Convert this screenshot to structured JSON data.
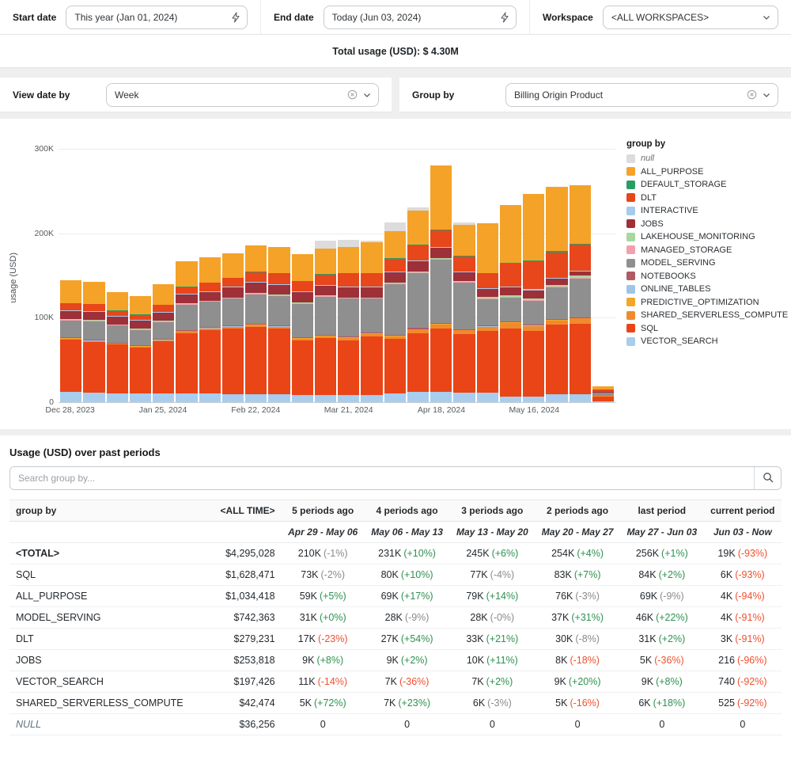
{
  "filters": {
    "start_date": {
      "label": "Start date",
      "value": "This year (Jan 01, 2024)"
    },
    "end_date": {
      "label": "End date",
      "value": "Today (Jun 03, 2024)"
    },
    "workspace": {
      "label": "Workspace",
      "value": "<ALL WORKSPACES>"
    },
    "view_date_by": {
      "label": "View date by",
      "value": "Week"
    },
    "group_by": {
      "label": "Group by",
      "value": "Billing Origin Product"
    }
  },
  "summary": {
    "total_usage": "Total usage (USD): $ 4.30M"
  },
  "chart_data": {
    "type": "bar",
    "stacked": true,
    "ylabel": "usage (USD)",
    "units": "thousands USD per week",
    "ylim_k": [
      0,
      300
    ],
    "yticks_k": [
      {
        "v": 0,
        "label": "0"
      },
      {
        "v": 100,
        "label": "100K"
      },
      {
        "v": 200,
        "label": "200K"
      },
      {
        "v": 300,
        "label": "300K"
      }
    ],
    "x_axis_labels": [
      {
        "index": 0,
        "label": "Dec 28, 2023"
      },
      {
        "index": 4,
        "label": "Jan 25, 2024"
      },
      {
        "index": 8,
        "label": "Feb 22, 2024"
      },
      {
        "index": 12,
        "label": "Mar 21, 2024"
      },
      {
        "index": 16,
        "label": "Apr 18, 2024"
      },
      {
        "index": 20,
        "label": "May 16, 2024"
      }
    ],
    "legend_title": "group by",
    "legend_position": "right",
    "series": [
      {
        "name": "null",
        "color": "#DCDCDC",
        "values": [
          0,
          0,
          0,
          0,
          0,
          0,
          0,
          0,
          0,
          0,
          0,
          10,
          9,
          2,
          10,
          4,
          0,
          3,
          0,
          0,
          0,
          0,
          0,
          0
        ]
      },
      {
        "name": "ALL_PURPOSE",
        "color": "#F5A229",
        "values": [
          27,
          26,
          22,
          22,
          24,
          30,
          30,
          29,
          31,
          31,
          32,
          30,
          31,
          37,
          32,
          40,
          76,
          36,
          59,
          69,
          79,
          76,
          69,
          4
        ]
      },
      {
        "name": "DEFAULT_STORAGE",
        "color": "#2A9D64",
        "values": [
          0.5,
          0.5,
          0.5,
          0.5,
          0.5,
          0.5,
          0.5,
          0.5,
          0.5,
          0.5,
          0.5,
          0.5,
          0.5,
          0.5,
          1,
          1,
          1,
          1,
          1,
          1,
          1,
          1,
          1,
          0.1
        ]
      },
      {
        "name": "DLT",
        "color": "#E8461B",
        "values": [
          8,
          8,
          6,
          6,
          8,
          8,
          10,
          10,
          12,
          12,
          12,
          12,
          15,
          15,
          15,
          18,
          20,
          18,
          17,
          27,
          33,
          30,
          31,
          3
        ]
      },
      {
        "name": "INTERACTIVE",
        "color": "#A6CBEC",
        "values": [
          1,
          1,
          1,
          1,
          1,
          1,
          1,
          1,
          1,
          1,
          1,
          1,
          1,
          1,
          1,
          1,
          1,
          1,
          1,
          1,
          1,
          1,
          1,
          0.1
        ]
      },
      {
        "name": "JOBS",
        "color": "#9E3039",
        "values": [
          10,
          10,
          9,
          9,
          10,
          10,
          10,
          12,
          12,
          12,
          12,
          12,
          12,
          12,
          12,
          12,
          12,
          10,
          9,
          9,
          10,
          8,
          5,
          0.2
        ]
      },
      {
        "name": "LAKEHOUSE_MONITORING",
        "color": "#A8D8A0",
        "values": [
          0.5,
          0.5,
          0.5,
          0.5,
          0.5,
          0.5,
          0.5,
          0.5,
          0.5,
          0.5,
          0.5,
          0.5,
          0.5,
          0.5,
          1,
          1,
          1,
          1,
          2,
          2,
          2,
          2,
          2,
          0.1
        ]
      },
      {
        "name": "MANAGED_STORAGE",
        "color": "#F2A1AC",
        "values": [
          1,
          1,
          1,
          1,
          1,
          1,
          1,
          1,
          1,
          1,
          1,
          1,
          1,
          1,
          1,
          1,
          1,
          1,
          1,
          1,
          1,
          1,
          1,
          0.1
        ]
      },
      {
        "name": "MODEL_SERVING",
        "color": "#8F8F8F",
        "values": [
          20,
          22,
          20,
          18,
          20,
          30,
          30,
          32,
          35,
          35,
          40,
          45,
          45,
          40,
          60,
          65,
          75,
          55,
          31,
          28,
          28,
          37,
          46,
          4
        ]
      },
      {
        "name": "NOTEBOOKS",
        "color": "#B05A66",
        "values": [
          1,
          1,
          1,
          1,
          1,
          1,
          1,
          1,
          1,
          1,
          1,
          1,
          1,
          1,
          1,
          1,
          1,
          1,
          1,
          1,
          1,
          1,
          1,
          0.1
        ]
      },
      {
        "name": "ONLINE_TABLES",
        "color": "#9FC5E8",
        "values": [
          0.2,
          0.2,
          0.2,
          0.2,
          0.2,
          0.2,
          0.2,
          0.2,
          0.2,
          0.2,
          0.2,
          0.2,
          0.2,
          0.2,
          0.2,
          0.2,
          0.2,
          0.2,
          0.2,
          0.2,
          0.2,
          0.2,
          0.2,
          0.1
        ]
      },
      {
        "name": "PREDICTIVE_OPTIMIZATION",
        "color": "#F4A62A",
        "values": [
          0.5,
          0.5,
          0.5,
          0.5,
          0.5,
          0.5,
          0.5,
          0.5,
          0.5,
          0.5,
          0.5,
          0.5,
          0.5,
          0.5,
          0.5,
          0.5,
          0.5,
          0.5,
          0.5,
          0.5,
          0.5,
          0.5,
          0.5,
          0.1
        ]
      },
      {
        "name": "SHARED_SERVERLESS_COMPUTE",
        "color": "#F08B2D",
        "values": [
          1,
          1,
          1,
          1,
          1,
          2,
          2,
          2,
          2,
          2,
          2,
          2,
          3,
          3,
          3,
          4,
          5,
          4,
          5,
          7,
          6,
          5,
          6,
          0.5
        ]
      },
      {
        "name": "SQL",
        "color": "#EA4517",
        "values": [
          62,
          60,
          58,
          55,
          62,
          72,
          75,
          78,
          80,
          78,
          65,
          68,
          65,
          70,
          65,
          70,
          75,
          70,
          73,
          80,
          77,
          83,
          84,
          6
        ]
      },
      {
        "name": "VECTOR_SEARCH",
        "color": "#A8CDEE",
        "values": [
          12,
          11,
          10,
          10,
          10,
          10,
          10,
          9,
          9,
          9,
          8,
          8,
          8,
          8,
          10,
          12,
          12,
          11,
          11,
          7,
          7,
          9,
          9,
          0.7
        ]
      }
    ]
  },
  "table": {
    "title": "Usage (USD) over past periods",
    "search_placeholder": "Search group by...",
    "trend_colors": {
      "up": "#2E9150",
      "down": "#F0502F",
      "neutral": "#8A8A8A"
    },
    "columns": [
      "group by",
      "<ALL TIME>",
      "5 periods ago",
      "4 periods ago",
      "3 periods ago",
      "2 periods ago",
      "last period",
      "current period"
    ],
    "period_ranges": [
      "",
      "",
      "Apr 29 - May 06",
      "May 06 - May 13",
      "May 13 - May 20",
      "May 20 - May 27",
      "May 27 - Jun 03",
      "Jun 03 - Now"
    ],
    "rows": [
      {
        "name": "<TOTAL>",
        "bold": true,
        "all_time": "$4,295,028",
        "periods": [
          {
            "v": "210K",
            "p": "(-1%)",
            "c": "neutral"
          },
          {
            "v": "231K",
            "p": "(+10%)",
            "c": "up"
          },
          {
            "v": "245K",
            "p": "(+6%)",
            "c": "up"
          },
          {
            "v": "254K",
            "p": "(+4%)",
            "c": "up"
          },
          {
            "v": "256K",
            "p": "(+1%)",
            "c": "up"
          },
          {
            "v": "19K",
            "p": "(-93%)",
            "c": "down"
          }
        ]
      },
      {
        "name": "SQL",
        "all_time": "$1,628,471",
        "periods": [
          {
            "v": "73K",
            "p": "(-2%)",
            "c": "neutral"
          },
          {
            "v": "80K",
            "p": "(+10%)",
            "c": "up"
          },
          {
            "v": "77K",
            "p": "(-4%)",
            "c": "neutral"
          },
          {
            "v": "83K",
            "p": "(+7%)",
            "c": "up"
          },
          {
            "v": "84K",
            "p": "(+2%)",
            "c": "up"
          },
          {
            "v": "6K",
            "p": "(-93%)",
            "c": "down"
          }
        ]
      },
      {
        "name": "ALL_PURPOSE",
        "all_time": "$1,034,418",
        "periods": [
          {
            "v": "59K",
            "p": "(+5%)",
            "c": "up"
          },
          {
            "v": "69K",
            "p": "(+17%)",
            "c": "up"
          },
          {
            "v": "79K",
            "p": "(+14%)",
            "c": "up"
          },
          {
            "v": "76K",
            "p": "(-3%)",
            "c": "neutral"
          },
          {
            "v": "69K",
            "p": "(-9%)",
            "c": "neutral"
          },
          {
            "v": "4K",
            "p": "(-94%)",
            "c": "down"
          }
        ]
      },
      {
        "name": "MODEL_SERVING",
        "all_time": "$742,363",
        "periods": [
          {
            "v": "31K",
            "p": "(+0%)",
            "c": "up"
          },
          {
            "v": "28K",
            "p": "(-9%)",
            "c": "neutral"
          },
          {
            "v": "28K",
            "p": "(-0%)",
            "c": "neutral"
          },
          {
            "v": "37K",
            "p": "(+31%)",
            "c": "up"
          },
          {
            "v": "46K",
            "p": "(+22%)",
            "c": "up"
          },
          {
            "v": "4K",
            "p": "(-91%)",
            "c": "down"
          }
        ]
      },
      {
        "name": "DLT",
        "all_time": "$279,231",
        "periods": [
          {
            "v": "17K",
            "p": "(-23%)",
            "c": "down"
          },
          {
            "v": "27K",
            "p": "(+54%)",
            "c": "up"
          },
          {
            "v": "33K",
            "p": "(+21%)",
            "c": "up"
          },
          {
            "v": "30K",
            "p": "(-8%)",
            "c": "neutral"
          },
          {
            "v": "31K",
            "p": "(+2%)",
            "c": "up"
          },
          {
            "v": "3K",
            "p": "(-91%)",
            "c": "down"
          }
        ]
      },
      {
        "name": "JOBS",
        "all_time": "$253,818",
        "periods": [
          {
            "v": "9K",
            "p": "(+8%)",
            "c": "up"
          },
          {
            "v": "9K",
            "p": "(+2%)",
            "c": "up"
          },
          {
            "v": "10K",
            "p": "(+11%)",
            "c": "up"
          },
          {
            "v": "8K",
            "p": "(-18%)",
            "c": "down"
          },
          {
            "v": "5K",
            "p": "(-36%)",
            "c": "down"
          },
          {
            "v": "216",
            "p": "(-96%)",
            "c": "down"
          }
        ]
      },
      {
        "name": "VECTOR_SEARCH",
        "all_time": "$197,426",
        "periods": [
          {
            "v": "11K",
            "p": "(-14%)",
            "c": "down"
          },
          {
            "v": "7K",
            "p": "(-36%)",
            "c": "down"
          },
          {
            "v": "7K",
            "p": "(+2%)",
            "c": "up"
          },
          {
            "v": "9K",
            "p": "(+20%)",
            "c": "up"
          },
          {
            "v": "9K",
            "p": "(+8%)",
            "c": "up"
          },
          {
            "v": "740",
            "p": "(-92%)",
            "c": "down"
          }
        ]
      },
      {
        "name": "SHARED_SERVERLESS_COMPUTE",
        "all_time": "$42,474",
        "periods": [
          {
            "v": "5K",
            "p": "(+72%)",
            "c": "up"
          },
          {
            "v": "7K",
            "p": "(+23%)",
            "c": "up"
          },
          {
            "v": "6K",
            "p": "(-3%)",
            "c": "neutral"
          },
          {
            "v": "5K",
            "p": "(-16%)",
            "c": "down"
          },
          {
            "v": "6K",
            "p": "(+18%)",
            "c": "up"
          },
          {
            "v": "525",
            "p": "(-92%)",
            "c": "down"
          }
        ]
      },
      {
        "name": "NULL",
        "italic": true,
        "all_time": "$36,256",
        "periods": [
          {
            "v": "0"
          },
          {
            "v": "0"
          },
          {
            "v": "0"
          },
          {
            "v": "0"
          },
          {
            "v": "0"
          },
          {
            "v": "0"
          }
        ]
      }
    ]
  }
}
